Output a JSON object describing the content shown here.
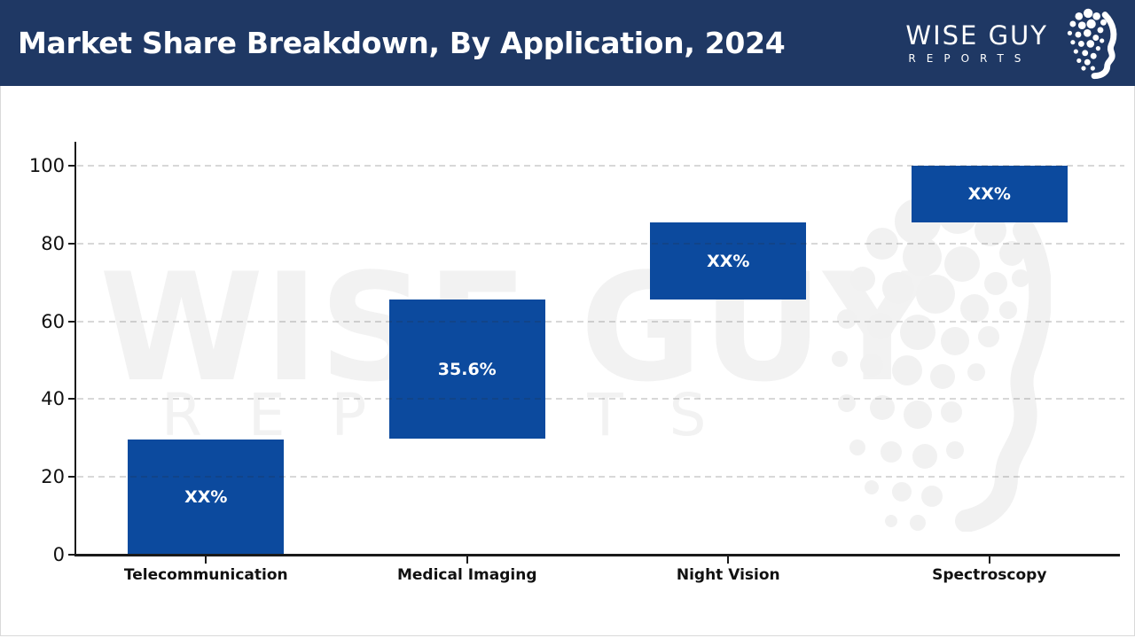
{
  "header": {
    "title": "Market Share Breakdown, By Application, 2024",
    "brand": {
      "line1": "WISE GUY",
      "line2": "REPORTS"
    }
  },
  "watermark": {
    "line1": "WISE GUY",
    "line2": "REPORTS"
  },
  "chart_data": {
    "type": "bar",
    "variant": "floating-segment-waterfall",
    "title": "Market Share Breakdown, By Application, 2024",
    "categories": [
      "Telecommunication",
      "Medical Imaging",
      "Night Vision",
      "Spectroscopy"
    ],
    "bars": [
      {
        "category": "Telecommunication",
        "start": 0,
        "end": 29.5,
        "label": "XX%"
      },
      {
        "category": "Medical Imaging",
        "start": 29.9,
        "end": 65.5,
        "label": "35.6%"
      },
      {
        "category": "Night Vision",
        "start": 65.6,
        "end": 85.4,
        "label": "XX%"
      },
      {
        "category": "Spectroscopy",
        "start": 85.5,
        "end": 100,
        "label": "XX%"
      }
    ],
    "xlabel": "",
    "ylabel": "",
    "ylim": [
      0,
      100
    ],
    "yticks": [
      0,
      20,
      40,
      60,
      80,
      100
    ],
    "grid": "horizontal dashed",
    "legend": "none",
    "colors": {
      "bar": "#0C4A9E",
      "bar_label": "#FFFFFF",
      "header_bg": "#1F3864",
      "axis": "#1A1A1A",
      "watermark": "#F2F2F2"
    }
  }
}
